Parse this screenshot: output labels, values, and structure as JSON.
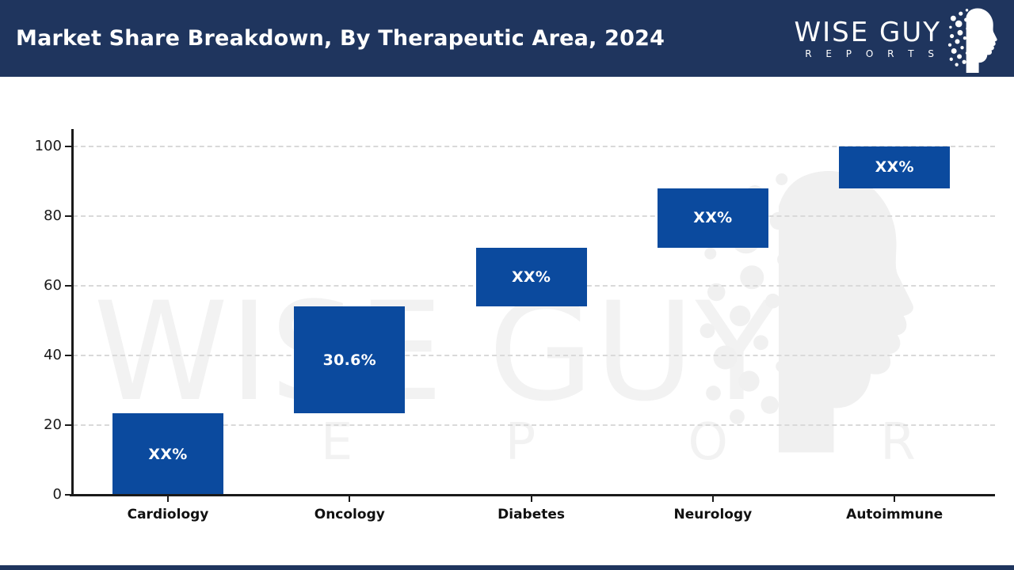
{
  "header": {
    "title": "Market Share Breakdown, By Therapeutic Area, 2024",
    "logo": {
      "line1": "WISE GUY",
      "line2": "R E P O R T S"
    }
  },
  "watermark": {
    "line1": "WISE GUY",
    "line2": "R E P O R T S"
  },
  "chart_data": {
    "type": "bar",
    "subtype": "waterfall-floating-bars",
    "title": "Market Share Breakdown, By Therapeutic Area, 2024",
    "categories": [
      "Cardiology",
      "Oncology",
      "Diabetes",
      "Neurology",
      "Autoimmune"
    ],
    "bars": [
      {
        "category": "Cardiology",
        "start": 0,
        "end": 23.4,
        "value": 23.4,
        "label": "XX%"
      },
      {
        "category": "Oncology",
        "start": 23.4,
        "end": 54.0,
        "value": 30.6,
        "label": "30.6%"
      },
      {
        "category": "Diabetes",
        "start": 54.0,
        "end": 71.0,
        "value": 17.0,
        "label": "XX%"
      },
      {
        "category": "Neurology",
        "start": 71.0,
        "end": 88.0,
        "value": 17.0,
        "label": "XX%"
      },
      {
        "category": "Autoimmune",
        "start": 88.0,
        "end": 100.0,
        "value": 12.0,
        "label": "XX%"
      }
    ],
    "yticks": [
      0,
      20,
      40,
      60,
      80,
      100
    ],
    "ylim": [
      0,
      105
    ],
    "xlabel": "",
    "ylabel": "",
    "grid": "horizontal-dashed",
    "legend": "none",
    "bar_color": "#0b4a9e",
    "bar_label_color": "#ffffff"
  },
  "colors": {
    "header_bg": "#1f355e",
    "footer_bg": "#1f355e",
    "bar_fill": "#0b4a9e",
    "grid_line": "#d9d9d9",
    "axis_line": "#1a1a1a",
    "watermark": "#f2f2f2"
  }
}
